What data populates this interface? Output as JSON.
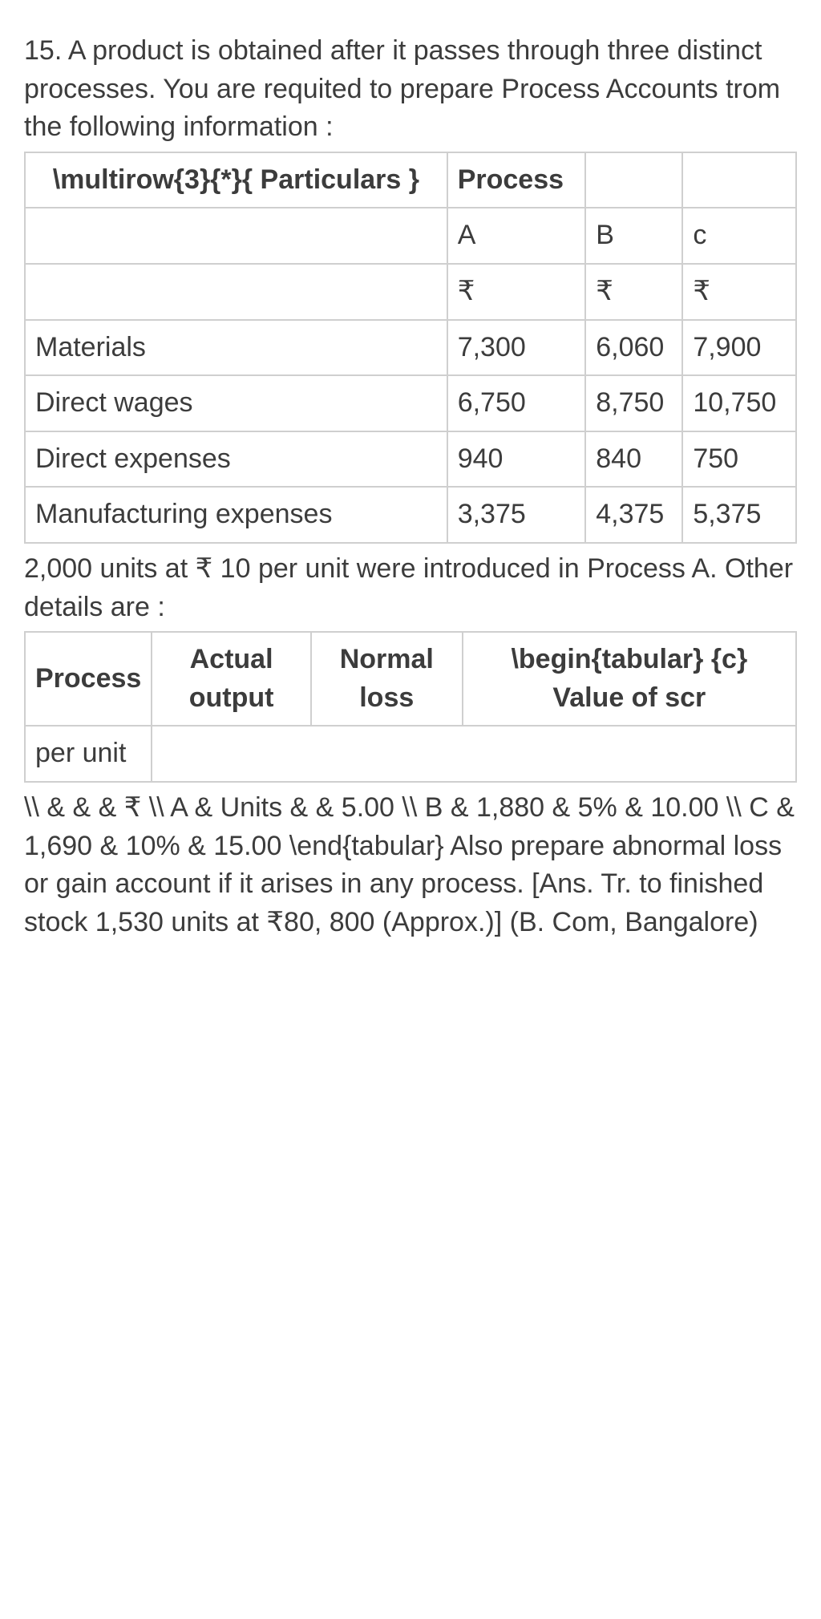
{
  "q": {
    "lead": "15. A product is obtained after it passes through three distinct processes. You are requited to prepare Process Accounts trom the following information :"
  },
  "t1": {
    "h_part": "\\multirow{3}{*}{ Particulars }",
    "h_proc": "Process",
    "c1": "A",
    "c2": "B",
    "c3": "c",
    "cur": "₹",
    "r": [
      {
        "label": "Materials",
        "a": "7,300",
        "b": "6,060",
        "c": "7,900"
      },
      {
        "label": "Direct wages",
        "a": "6,750",
        "b": "8,750",
        "c": "10,750"
      },
      {
        "label": "Direct expenses",
        "a": "940",
        "b": "840",
        "c": "750"
      },
      {
        "label": "Manufacturing expenses",
        "a": "3,375",
        "b": "4,375",
        "c": "5,375"
      }
    ]
  },
  "mid": "2,000 units at ₹ 10 per unit were introduced in Process A. Other details are :",
  "t2": {
    "h1": "Process",
    "h2": "Actual output",
    "h3": "Normal loss",
    "h4": "\\begin{tabular} {c} Value of scr",
    "r1": "per unit"
  },
  "tail": "\\\\ & & & ₹ \\\\ A & Units & & 5.00 \\\\ B & 1,880 & 5% & 10.00 \\\\ C & 1,690 & 10% & 15.00 \\end{tabular} Also prepare abnormal loss or gain account if it arises in any process. [Ans. Tr. to finished stock 1,530 units at ₹80, 800 (Approx.)] (B. Com, Bangalore)"
}
